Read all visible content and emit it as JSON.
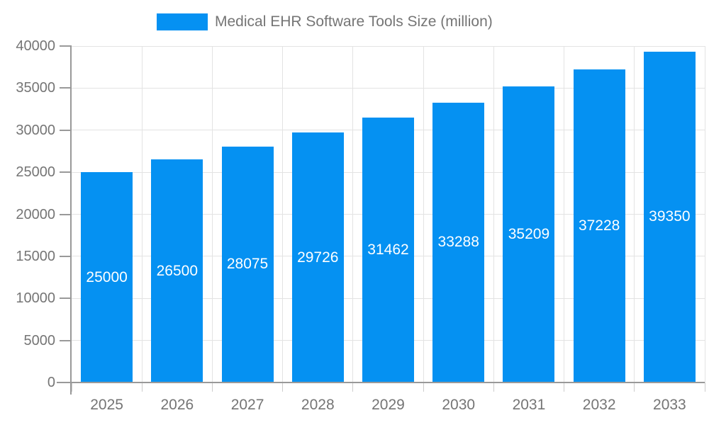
{
  "chart_data": {
    "type": "bar",
    "title": "Medical EHR Software Tools Size (million)",
    "legend_position": "top-center",
    "categories": [
      "2025",
      "2026",
      "2027",
      "2028",
      "2029",
      "2030",
      "2031",
      "2032",
      "2033"
    ],
    "values": [
      25000,
      26500,
      28075,
      29726,
      31462,
      33288,
      35209,
      37228,
      39350
    ],
    "xlabel": "",
    "ylabel": "",
    "ylim": [
      0,
      40000
    ],
    "ytick_step": 5000,
    "y_ticks": [
      0,
      5000,
      10000,
      15000,
      20000,
      25000,
      30000,
      35000,
      40000
    ],
    "grid": "on",
    "bar_labels": "inside-center",
    "colors": {
      "bar": "#0591F2",
      "grid": "#e3e3e3",
      "axis": "#999999",
      "tick": "#cccccc",
      "text": "#757575",
      "bar_label": "#ffffff",
      "background": "#ffffff"
    }
  }
}
